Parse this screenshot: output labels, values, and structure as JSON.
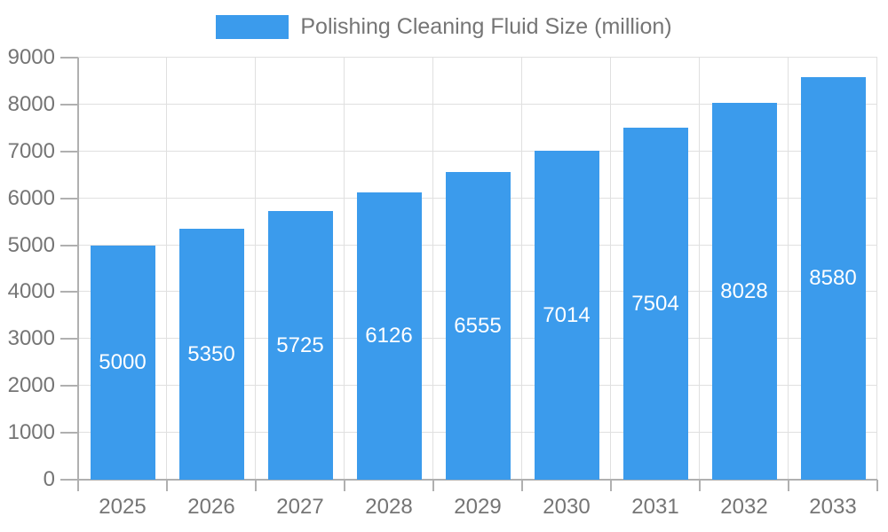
{
  "legend": {
    "label": "Polishing Cleaning Fluid Size (million)"
  },
  "chart_data": {
    "type": "bar",
    "title": "Polishing Cleaning Fluid Size (million)",
    "categories": [
      "2025",
      "2026",
      "2027",
      "2028",
      "2029",
      "2030",
      "2031",
      "2032",
      "2033"
    ],
    "values": [
      5000,
      5350,
      5725,
      6126,
      6555,
      7014,
      7504,
      8028,
      8580
    ],
    "series": [
      {
        "name": "Polishing Cleaning Fluid Size (million)",
        "values": [
          5000,
          5350,
          5725,
          6126,
          6555,
          7014,
          7504,
          8028,
          8580
        ]
      }
    ],
    "value_labels": [
      "5000",
      "5350",
      "5725",
      "6126",
      "6555",
      "7014",
      "7504",
      "8028",
      "8580"
    ],
    "value_labels_position": "inside-center",
    "xlabel": "",
    "ylabel": "",
    "ylim": [
      0,
      9000
    ],
    "ytick_interval": 1000,
    "ytick_labels": [
      "0",
      "1000",
      "2000",
      "3000",
      "4000",
      "5000",
      "6000",
      "7000",
      "8000",
      "9000"
    ],
    "grid": true,
    "grid_vertical": true,
    "legend_position": "top-center",
    "colors": {
      "bar": "#3b9bec",
      "value_label_text": "#ffffff",
      "axis_line": "#b0b0b0",
      "gridline": "#e0e0e0",
      "tick_text": "#757575",
      "background": "#ffffff"
    }
  }
}
